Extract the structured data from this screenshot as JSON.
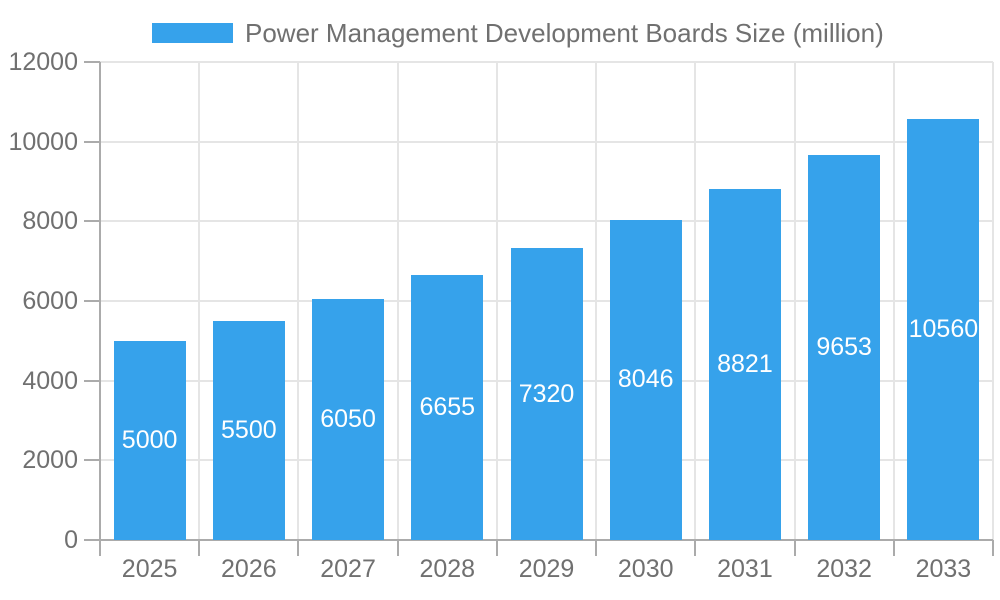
{
  "chart_data": {
    "type": "bar",
    "title": "Power Management Development Boards Size (million)",
    "categories": [
      "2025",
      "2026",
      "2027",
      "2028",
      "2029",
      "2030",
      "2031",
      "2032",
      "2033"
    ],
    "series": [
      {
        "name": "Power Management Development Boards Size (million)",
        "values": [
          5000,
          5500,
          6050,
          6655,
          7320,
          8046,
          8821,
          9653,
          10560
        ]
      }
    ],
    "value_labels_position": "inside-center",
    "xlabel": "",
    "ylabel": "",
    "ylim": [
      0,
      12000
    ],
    "yticks": [
      0,
      2000,
      4000,
      6000,
      8000,
      10000,
      12000
    ],
    "grid": "horizontal and vertical light gray lines",
    "legend_position": "top",
    "colors": {
      "bar": "#36A2EB",
      "bar_value_label": "#FFFFFF",
      "text": "#707070",
      "grid": "#E5E5E5",
      "axis": "#ABABAB",
      "background": "#FFFFFF"
    }
  }
}
